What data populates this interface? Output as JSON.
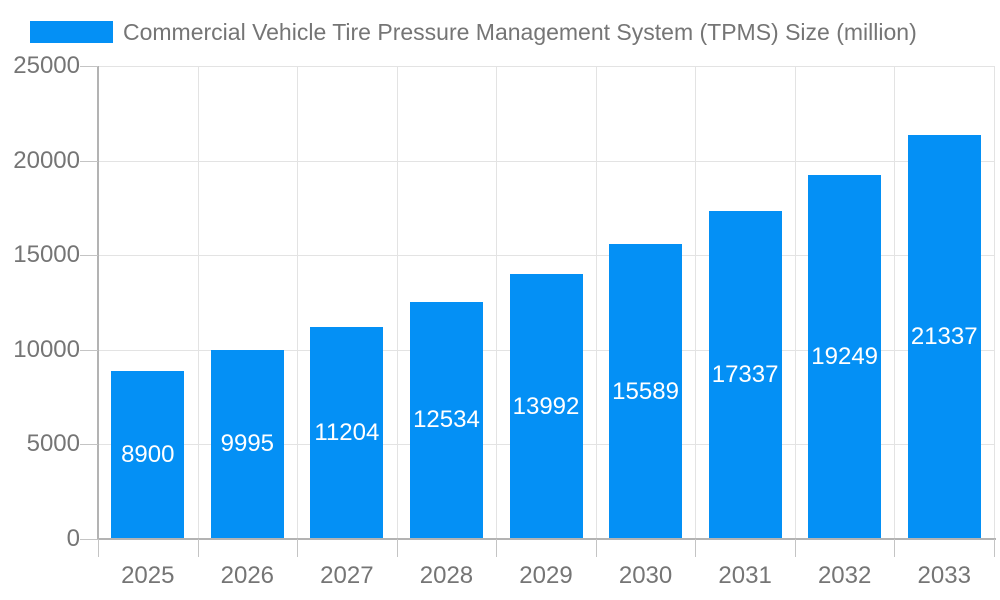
{
  "legend": {
    "swatch_color": "#0490f5"
  },
  "chart_data": {
    "type": "bar",
    "title": "Commercial Vehicle Tire Pressure Management System (TPMS) Size (million)",
    "categories": [
      "2025",
      "2026",
      "2027",
      "2028",
      "2029",
      "2030",
      "2031",
      "2032",
      "2033"
    ],
    "values": [
      8900,
      9995,
      11204,
      12534,
      13992,
      15589,
      17337,
      19249,
      21337
    ],
    "xlabel": "",
    "ylabel": "",
    "ylim": [
      0,
      25000
    ],
    "yticks": [
      0,
      5000,
      10000,
      15000,
      20000,
      25000
    ],
    "grid": true,
    "legend_position": "top-left",
    "bar_color": "#0490f5",
    "value_label_color": "#ffffff",
    "axis_text_color": "#757575"
  }
}
